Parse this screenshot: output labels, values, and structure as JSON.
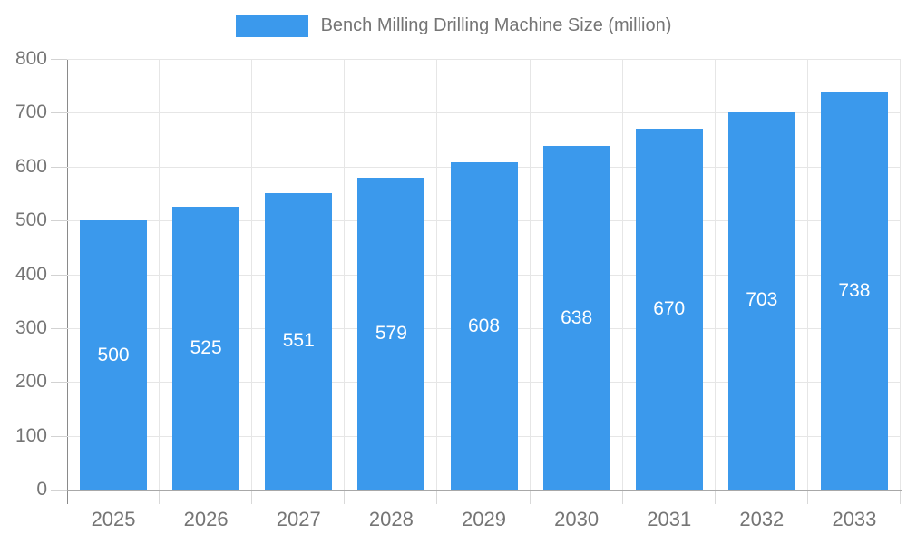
{
  "chart_data": {
    "type": "bar",
    "title": "Bench Milling Drilling Machine Size (million)",
    "legend": {
      "label": "Bench Milling Drilling Machine Size (million)",
      "position": "top-center"
    },
    "categories": [
      "2025",
      "2026",
      "2027",
      "2028",
      "2029",
      "2030",
      "2031",
      "2032",
      "2033"
    ],
    "values": [
      500,
      525,
      551,
      579,
      608,
      638,
      670,
      703,
      738
    ],
    "value_labels": [
      "500",
      "525",
      "551",
      "579",
      "608",
      "638",
      "670",
      "703",
      "738"
    ],
    "xlabel": "",
    "ylabel": "",
    "ylim": [
      0,
      800
    ],
    "ytick_step": 100,
    "ytick_labels": [
      "0",
      "100",
      "200",
      "300",
      "400",
      "500",
      "600",
      "700",
      "800"
    ],
    "grid": "on",
    "colors": {
      "bar": "#3B99EC",
      "grid": "#e6e6e6",
      "axis": "#8a8a8a",
      "tick": "#d9d9d9",
      "text": "#757575",
      "value_text": "#ffffff",
      "background": "#ffffff"
    }
  }
}
